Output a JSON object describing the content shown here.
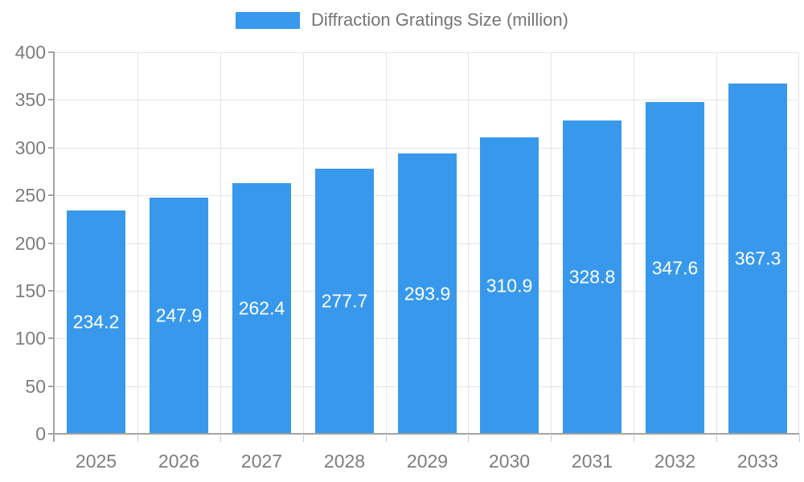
{
  "legend": {
    "label": "Diffraction Gratings Size (million)"
  },
  "colors": {
    "bar": "#3899ec",
    "bar_label_text": "#ffffff",
    "grid": "#e5e5e5",
    "axis": "#a3a3a3",
    "x_tick_mark": "#cccccc",
    "tick_text": "#7d7d7d",
    "legend_text": "#757575"
  },
  "chart_data": {
    "type": "bar",
    "title": "Diffraction Gratings Size (million)",
    "categories": [
      "2025",
      "2026",
      "2027",
      "2028",
      "2029",
      "2030",
      "2031",
      "2032",
      "2033"
    ],
    "values": [
      234.2,
      247.9,
      262.4,
      277.7,
      293.9,
      310.9,
      328.8,
      347.6,
      367.3
    ],
    "value_labels": [
      "234.2",
      "247.9",
      "262.4",
      "277.7",
      "293.9",
      "310.9",
      "328.8",
      "347.6",
      "367.3"
    ],
    "ytick_labels": [
      "0",
      "50",
      "100",
      "150",
      "200",
      "250",
      "300",
      "350",
      "400"
    ],
    "xlabel": "",
    "ylabel": "",
    "ylim": [
      0,
      400
    ],
    "ytick_step": 50,
    "grid": true,
    "legend_position": "top",
    "bar_labels_position": "center-inside"
  }
}
